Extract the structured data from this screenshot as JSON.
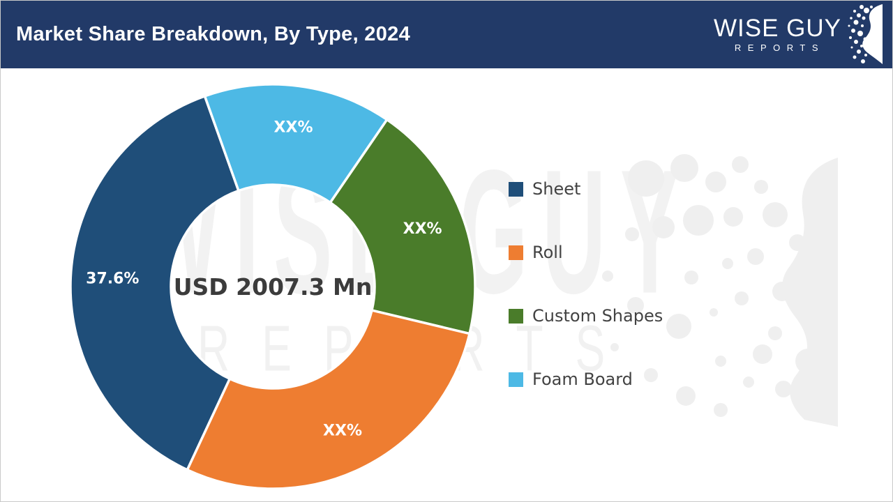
{
  "header": {
    "title": "Market Share Breakdown, By Type, 2024",
    "bg_color": "#223a68",
    "logo": {
      "line1": "WISE GUY",
      "line2": "REPORTS"
    }
  },
  "watermark": {
    "line1": "WISE GUY",
    "line2": "REPORTS"
  },
  "chart_data": {
    "type": "pie",
    "subtype": "donut",
    "title": "Market Share Breakdown, By Type, 2024",
    "center_label": "USD 2007.3 Mn",
    "start_angle_deg": 205,
    "outer_radius": 290,
    "inner_radius": 146,
    "label_radius": 230,
    "segments": [
      {
        "name": "Sheet",
        "value_pct": 37.6,
        "label": "37.6%",
        "color": "#1f4e79"
      },
      {
        "name": "Foam Board",
        "value_pct": 15.0,
        "label": "XX%",
        "color": "#4db9e5"
      },
      {
        "name": "Custom Shapes",
        "value_pct": 19.2,
        "label": "XX%",
        "color": "#4a7c2a"
      },
      {
        "name": "Roll",
        "value_pct": 28.2,
        "label": "XX%",
        "color": "#ee7d31"
      }
    ],
    "legend_order": [
      "Sheet",
      "Roll",
      "Custom Shapes",
      "Foam Board"
    ],
    "legend_position": "right",
    "label_color": "#ffffff",
    "center_label_color": "#3b3b3b"
  }
}
